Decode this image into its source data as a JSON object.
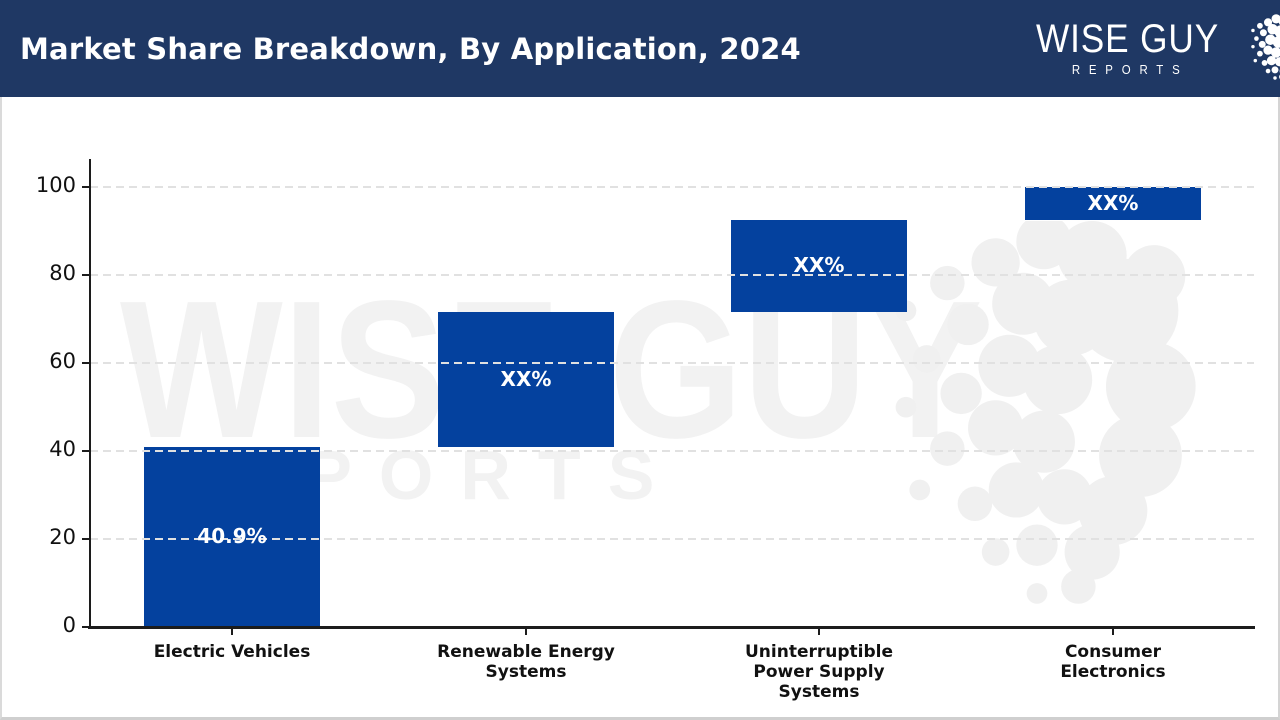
{
  "header": {
    "title": "Market Share Breakdown, By Application, 2024",
    "logo": {
      "brand": "WISE GUY",
      "sub": "REPORTS"
    }
  },
  "watermark": {
    "brand": "WISE GUY",
    "sub": "REPORTS"
  },
  "colors": {
    "header_bg": "#1f3864",
    "bar": "#04419e",
    "bar_label": "#ffffff",
    "grid": "#e1e1e1",
    "axis": "#1c1c1c",
    "watermark": "#f2f2f2"
  },
  "chart_data": {
    "type": "bar",
    "subtype": "waterfall",
    "title": "Market Share Breakdown, By Application, 2024",
    "categories": [
      "Electric Vehicles",
      "Renewable Energy\nSystems",
      "Uninterruptible\nPower Supply\nSystems",
      "Consumer\nElectronics"
    ],
    "segments": [
      {
        "category": "Electric Vehicles",
        "start": 0,
        "end": 40.9,
        "label": "40.9%"
      },
      {
        "category": "Renewable Energy Systems",
        "start": 40.9,
        "end": 71.5,
        "label": "XX%"
      },
      {
        "category": "Uninterruptible Power Supply Systems",
        "start": 71.5,
        "end": 92.4,
        "label": "XX%"
      },
      {
        "category": "Consumer Electronics",
        "start": 92.4,
        "end": 100,
        "label": "XX%"
      }
    ],
    "xlabel": "",
    "ylabel": "",
    "ylim": [
      0,
      100
    ],
    "yticks": [
      0,
      20,
      40,
      60,
      80,
      100
    ],
    "grid": "horizontal-dashed",
    "legend": null
  }
}
